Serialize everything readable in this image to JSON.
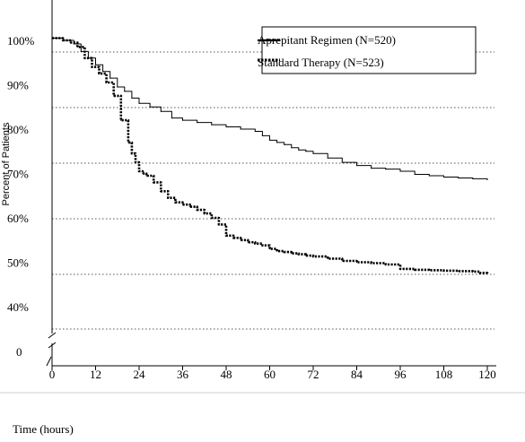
{
  "chart_data": {
    "type": "line",
    "title": "",
    "xlabel": "Time (hours)",
    "ylabel": "Percent of Patients",
    "x_ticks": [
      0,
      12,
      24,
      36,
      48,
      60,
      72,
      84,
      96,
      108,
      120
    ],
    "y_ticks": [
      {
        "value": 100,
        "label": "100%"
      },
      {
        "value": 90,
        "label": "90%"
      },
      {
        "value": 80,
        "label": "80%"
      },
      {
        "value": 70,
        "label": "70%"
      },
      {
        "value": 60,
        "label": "60%"
      },
      {
        "value": 50,
        "label": "50%"
      },
      {
        "value": 40,
        "label": "40%"
      },
      {
        "value": 0,
        "label": "0"
      }
    ],
    "xlim": [
      0,
      120
    ],
    "ylim": [
      30,
      105
    ],
    "axis_break": true,
    "grid": "horizontal dotted",
    "legend_position": "top-right",
    "series": [
      {
        "name": "Aprepitant Regimen (N=520)",
        "style": "solid",
        "color": "#000000",
        "x": [
          0,
          3,
          6,
          8,
          10,
          12,
          14,
          16,
          18,
          20,
          22,
          24,
          27,
          30,
          33,
          36,
          40,
          44,
          48,
          52,
          56,
          58,
          60,
          62,
          64,
          66,
          68,
          70,
          72,
          76,
          80,
          84,
          88,
          92,
          96,
          100,
          104,
          108,
          112,
          116,
          120
        ],
        "y": [
          100.5,
          100,
          99.2,
          97.5,
          96,
          94.5,
          93,
          91.5,
          89.5,
          88.5,
          87,
          85.8,
          85,
          84,
          82.5,
          82,
          81.5,
          81,
          80.5,
          80,
          79.5,
          78.5,
          77.5,
          77,
          76.5,
          75.8,
          75.3,
          75,
          74.5,
          73.5,
          72.5,
          71.8,
          71.2,
          71,
          70.5,
          69.8,
          69.5,
          69.2,
          69,
          68.8,
          68.6
        ]
      },
      {
        "name": "Standard Therapy (N=523)",
        "style": "dotted",
        "color": "#000000",
        "x": [
          0,
          3,
          5,
          7,
          9,
          11,
          13,
          15,
          17,
          19,
          21,
          22,
          23,
          24,
          25,
          26,
          28,
          30,
          32,
          34,
          36,
          38,
          40,
          42,
          44,
          46,
          48,
          50,
          52,
          54,
          56,
          58,
          60,
          62,
          64,
          66,
          68,
          70,
          72,
          76,
          80,
          84,
          88,
          92,
          96,
          100,
          104,
          108,
          112,
          116,
          118,
          120
        ],
        "y": [
          100.5,
          100,
          99.5,
          98.5,
          96,
          94,
          92.5,
          90.5,
          87.5,
          82,
          77,
          74.5,
          72.5,
          70.5,
          70,
          69.5,
          68,
          66,
          64.5,
          63.5,
          63,
          62.5,
          61.8,
          61,
          60,
          58.5,
          56,
          55.5,
          55,
          54.5,
          54.2,
          53.8,
          53,
          52.5,
          52.3,
          52,
          51.8,
          51.5,
          51.3,
          50.8,
          50.3,
          50,
          49.8,
          49.5,
          48.5,
          48.3,
          48.2,
          48.1,
          48,
          47.9,
          47.6,
          47.5
        ]
      }
    ]
  }
}
